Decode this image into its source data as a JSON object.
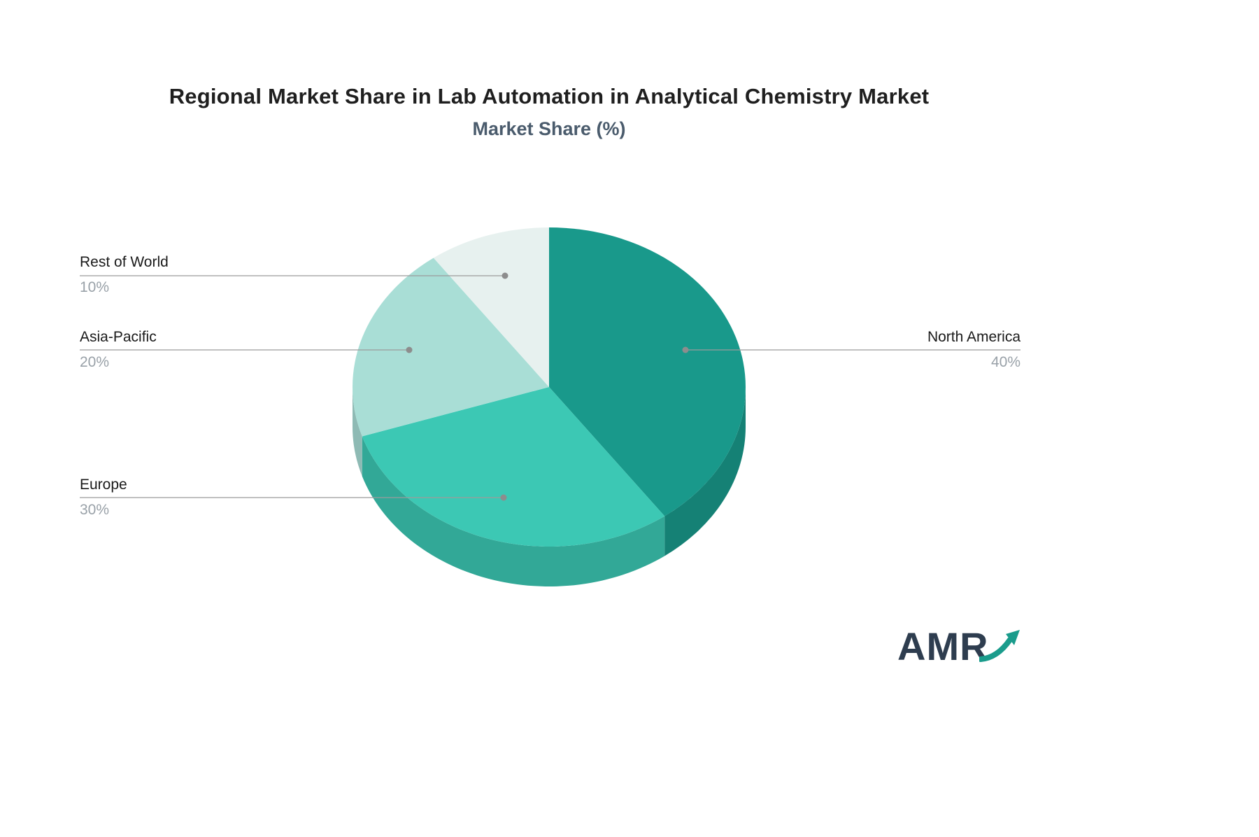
{
  "chart_data": {
    "type": "pie",
    "title": "Regional Market Share in Lab Automation in Analytical Chemistry Market",
    "subtitle": "Market Share (%)",
    "style": "3d-pie",
    "legend_position": "callout-labels",
    "background_color": "#ffffff",
    "label_color": "#1a1a1a",
    "percent_color": "#99a1a8",
    "slices": [
      {
        "label": "North America",
        "value": 40,
        "pct_label": "40%",
        "color": "#19998b"
      },
      {
        "label": "Europe",
        "value": 30,
        "pct_label": "30%",
        "color": "#3cc8b4"
      },
      {
        "label": "Asia-Pacific",
        "value": 20,
        "pct_label": "20%",
        "color": "#a9ded6"
      },
      {
        "label": "Rest of World",
        "value": 10,
        "pct_label": "10%",
        "color": "#e7f1ef"
      }
    ]
  },
  "logo": {
    "text": "AMR",
    "arrow_color": "#1a9c8c"
  }
}
